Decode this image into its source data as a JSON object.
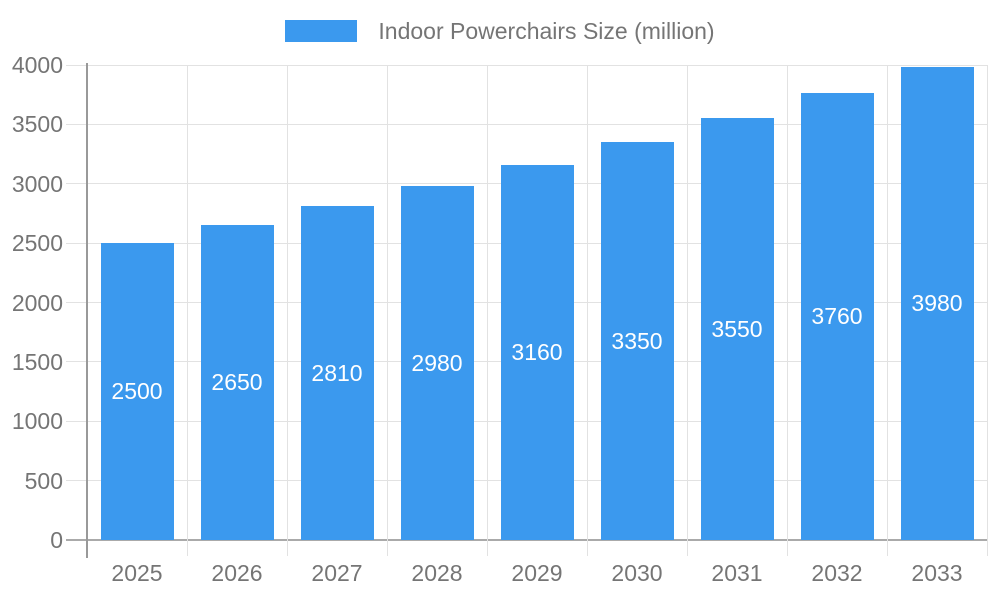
{
  "chart_data": {
    "type": "bar",
    "title": "Indoor Powerchairs Size (million)",
    "legend": [
      "Indoor Powerchairs Size (million)"
    ],
    "legend_position": "top",
    "categories": [
      "2025",
      "2026",
      "2027",
      "2028",
      "2029",
      "2030",
      "2031",
      "2032",
      "2033"
    ],
    "values": [
      2500,
      2650,
      2810,
      2980,
      3160,
      3350,
      3550,
      3760,
      3980
    ],
    "xlabel": "",
    "ylabel": "",
    "ylim": [
      0,
      4000
    ],
    "ytick_step": 500,
    "yticks": [
      "0",
      "500",
      "1000",
      "1500",
      "2000",
      "2500",
      "3000",
      "3500",
      "4000"
    ],
    "grid": true,
    "colors": {
      "bar": "#3B99EE",
      "bar_label": "#FFFFFF",
      "axis_text": "#757575",
      "grid_line": "#E2E2E2",
      "axis_line": "#999999",
      "baseline": "#AAAAAA",
      "background": "#FFFFFF"
    }
  }
}
